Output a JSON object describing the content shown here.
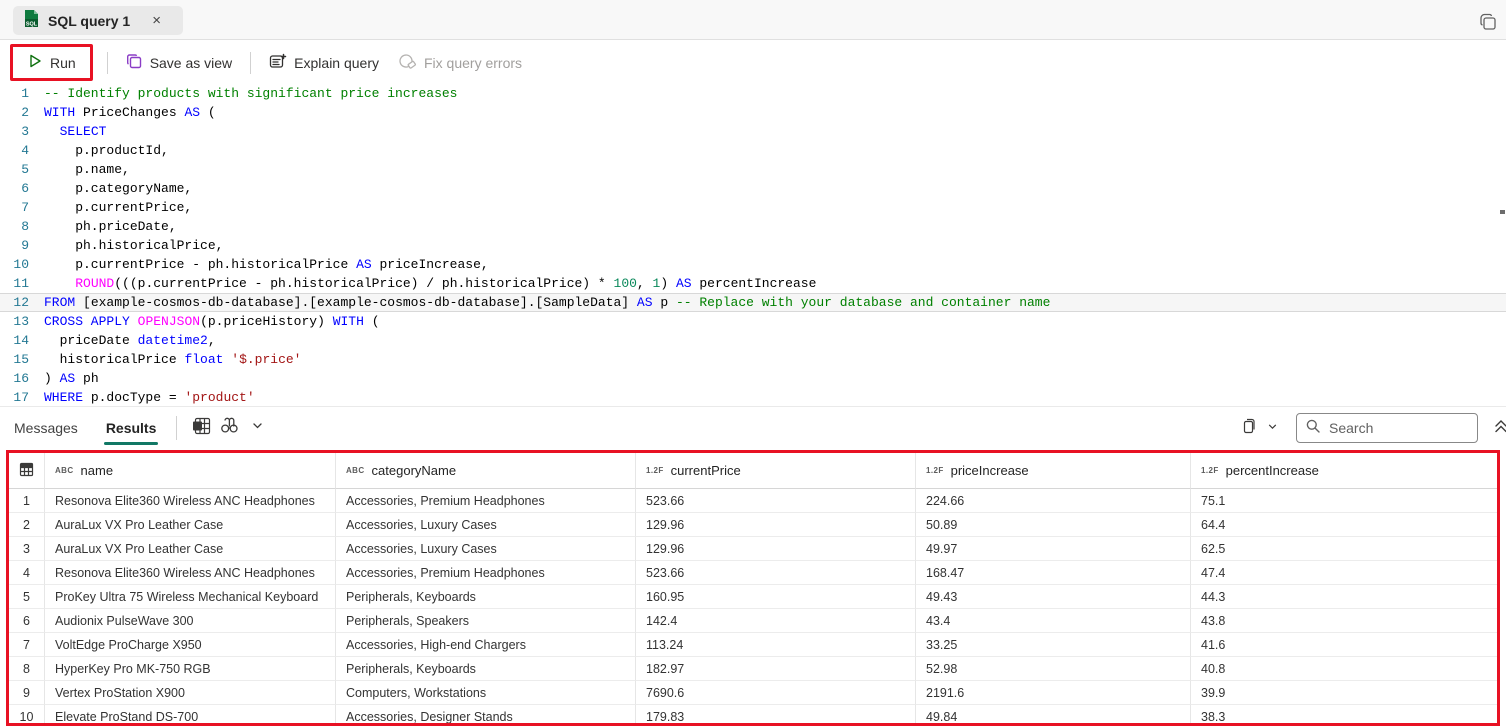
{
  "colors": {
    "annotation_red": "#e81123",
    "results_accent": "#117865",
    "keyword_blue": "#0000ff",
    "comment_green": "#008000",
    "function_magenta": "#ff00ff",
    "number_green": "#09885a",
    "string_red": "#a31515",
    "run_green": "#0e700e",
    "save_view_purple": "#8b3dc6",
    "sql_icon_green": "#0f7b3f"
  },
  "tab_bar": {
    "tab_title": "SQL query 1",
    "close_label": "×"
  },
  "toolbar": {
    "run_label": "Run",
    "save_as_view_label": "Save as view",
    "explain_query_label": "Explain query",
    "fix_query_errors_label": "Fix query errors"
  },
  "editor": {
    "lines": [
      {
        "n": "1",
        "hl": false,
        "seg": [
          [
            "cm",
            "-- Identify products with significant price increases"
          ]
        ]
      },
      {
        "n": "2",
        "hl": false,
        "seg": [
          [
            "kw",
            "WITH"
          ],
          [
            "pl",
            " PriceChanges "
          ],
          [
            "kw",
            "AS"
          ],
          [
            "pl",
            " ("
          ]
        ]
      },
      {
        "n": "3",
        "hl": false,
        "seg": [
          [
            "pl",
            "  "
          ],
          [
            "kw",
            "SELECT"
          ]
        ]
      },
      {
        "n": "4",
        "hl": false,
        "seg": [
          [
            "pl",
            "    p.productId,"
          ]
        ]
      },
      {
        "n": "5",
        "hl": false,
        "seg": [
          [
            "pl",
            "    p.name,"
          ]
        ]
      },
      {
        "n": "6",
        "hl": false,
        "seg": [
          [
            "pl",
            "    p.categoryName,"
          ]
        ]
      },
      {
        "n": "7",
        "hl": false,
        "seg": [
          [
            "pl",
            "    p.currentPrice,"
          ]
        ]
      },
      {
        "n": "8",
        "hl": false,
        "seg": [
          [
            "pl",
            "    ph.priceDate,"
          ]
        ]
      },
      {
        "n": "9",
        "hl": false,
        "seg": [
          [
            "pl",
            "    ph.historicalPrice,"
          ]
        ]
      },
      {
        "n": "10",
        "hl": false,
        "seg": [
          [
            "pl",
            "    p.currentPrice - ph.historicalPrice "
          ],
          [
            "kw",
            "AS"
          ],
          [
            "pl",
            " priceIncrease,"
          ]
        ]
      },
      {
        "n": "11",
        "hl": false,
        "seg": [
          [
            "pl",
            "    "
          ],
          [
            "fn",
            "ROUND"
          ],
          [
            "pl",
            "(((p.currentPrice - ph.historicalPrice) / ph.historicalPrice) * "
          ],
          [
            "num",
            "100"
          ],
          [
            "pl",
            ", "
          ],
          [
            "num",
            "1"
          ],
          [
            "pl",
            ") "
          ],
          [
            "kw",
            "AS"
          ],
          [
            "pl",
            " percentIncrease"
          ]
        ]
      },
      {
        "n": "12",
        "hl": true,
        "seg": [
          [
            "kw",
            "FROM"
          ],
          [
            "pl",
            " [example-cosmos-db-database].[example-cosmos-db-database].[SampleData] "
          ],
          [
            "kw",
            "AS"
          ],
          [
            "pl",
            " p "
          ],
          [
            "cm",
            "-- Replace with your database and container name"
          ]
        ]
      },
      {
        "n": "13",
        "hl": false,
        "seg": [
          [
            "kw",
            "CROSS APPLY"
          ],
          [
            "pl",
            " "
          ],
          [
            "fn",
            "OPENJSON"
          ],
          [
            "pl",
            "(p.priceHistory) "
          ],
          [
            "kw",
            "WITH"
          ],
          [
            "pl",
            " ("
          ]
        ]
      },
      {
        "n": "14",
        "hl": false,
        "seg": [
          [
            "pl",
            "  priceDate "
          ],
          [
            "kw",
            "datetime2"
          ],
          [
            "pl",
            ","
          ]
        ]
      },
      {
        "n": "15",
        "hl": false,
        "seg": [
          [
            "pl",
            "  historicalPrice "
          ],
          [
            "kw",
            "float"
          ],
          [
            "pl",
            " "
          ],
          [
            "str",
            "'$.price'"
          ]
        ]
      },
      {
        "n": "16",
        "hl": false,
        "seg": [
          [
            "pl",
            ") "
          ],
          [
            "kw",
            "AS"
          ],
          [
            "pl",
            " ph"
          ]
        ]
      },
      {
        "n": "17",
        "hl": false,
        "seg": [
          [
            "kw",
            "WHERE"
          ],
          [
            "pl",
            " p.docType = "
          ],
          [
            "str",
            "'product'"
          ]
        ]
      }
    ]
  },
  "results_panel": {
    "messages_tab": "Messages",
    "results_tab": "Results",
    "search_placeholder": "Search"
  },
  "table": {
    "columns": [
      {
        "type": "ABC",
        "label": "name"
      },
      {
        "type": "ABC",
        "label": "categoryName"
      },
      {
        "type": "1.2F",
        "label": "currentPrice"
      },
      {
        "type": "1.2F",
        "label": "priceIncrease"
      },
      {
        "type": "1.2F",
        "label": "percentIncrease"
      }
    ],
    "rows": [
      [
        "1",
        "Resonova Elite360 Wireless ANC Headphones",
        "Accessories, Premium Headphones",
        "523.66",
        "224.66",
        "75.1"
      ],
      [
        "2",
        "AuraLux VX Pro Leather Case",
        "Accessories, Luxury Cases",
        "129.96",
        "50.89",
        "64.4"
      ],
      [
        "3",
        "AuraLux VX Pro Leather Case",
        "Accessories, Luxury Cases",
        "129.96",
        "49.97",
        "62.5"
      ],
      [
        "4",
        "Resonova Elite360 Wireless ANC Headphones",
        "Accessories, Premium Headphones",
        "523.66",
        "168.47",
        "47.4"
      ],
      [
        "5",
        "ProKey Ultra 75 Wireless Mechanical Keyboard",
        "Peripherals, Keyboards",
        "160.95",
        "49.43",
        "44.3"
      ],
      [
        "6",
        "Audionix PulseWave 300",
        "Peripherals, Speakers",
        "142.4",
        "43.4",
        "43.8"
      ],
      [
        "7",
        "VoltEdge ProCharge X950",
        "Accessories, High-end Chargers",
        "113.24",
        "33.25",
        "41.6"
      ],
      [
        "8",
        "HyperKey Pro MK-750 RGB",
        "Peripherals, Keyboards",
        "182.97",
        "52.98",
        "40.8"
      ],
      [
        "9",
        "Vertex ProStation X900",
        "Computers, Workstations",
        "7690.6",
        "2191.6",
        "39.9"
      ],
      [
        "10",
        "Elevate ProStand DS-700",
        "Accessories, Designer Stands",
        "179.83",
        "49.84",
        "38.3"
      ]
    ]
  }
}
